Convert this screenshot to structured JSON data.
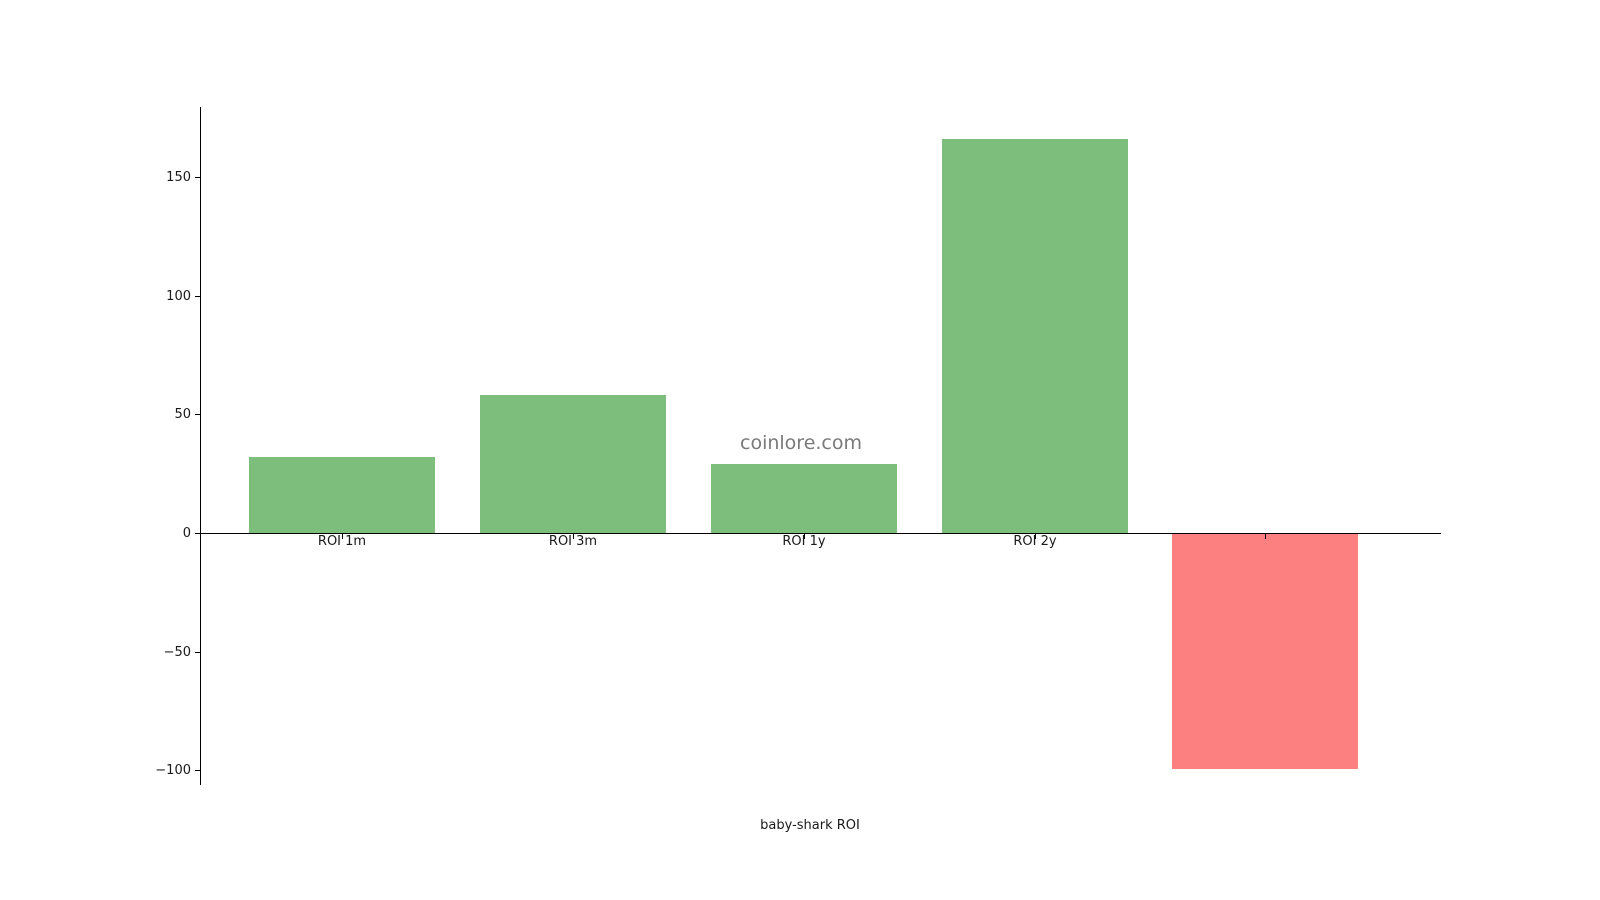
{
  "chart_data": {
    "type": "bar",
    "title": "baby-shark ROI",
    "watermark": "coinlore.com",
    "categories": [
      "ROI 1m",
      "ROI 3m",
      "ROI 1y",
      "ROI 2y",
      ""
    ],
    "values": [
      32,
      58,
      29,
      166,
      -99
    ],
    "y_ticks": [
      150,
      100,
      50,
      0,
      -50,
      -100
    ],
    "ylim": [
      -108,
      180
    ],
    "xlabel": "baby-shark ROI",
    "ylabel": "",
    "grid": false,
    "legend": null,
    "colors": {
      "positive": "#7dbe7d",
      "negative": "#fd8080",
      "axis": "#000000",
      "tick_text": "#1a1a1a",
      "watermark_text": "#7a7a7a",
      "background": "#ffffff"
    }
  }
}
